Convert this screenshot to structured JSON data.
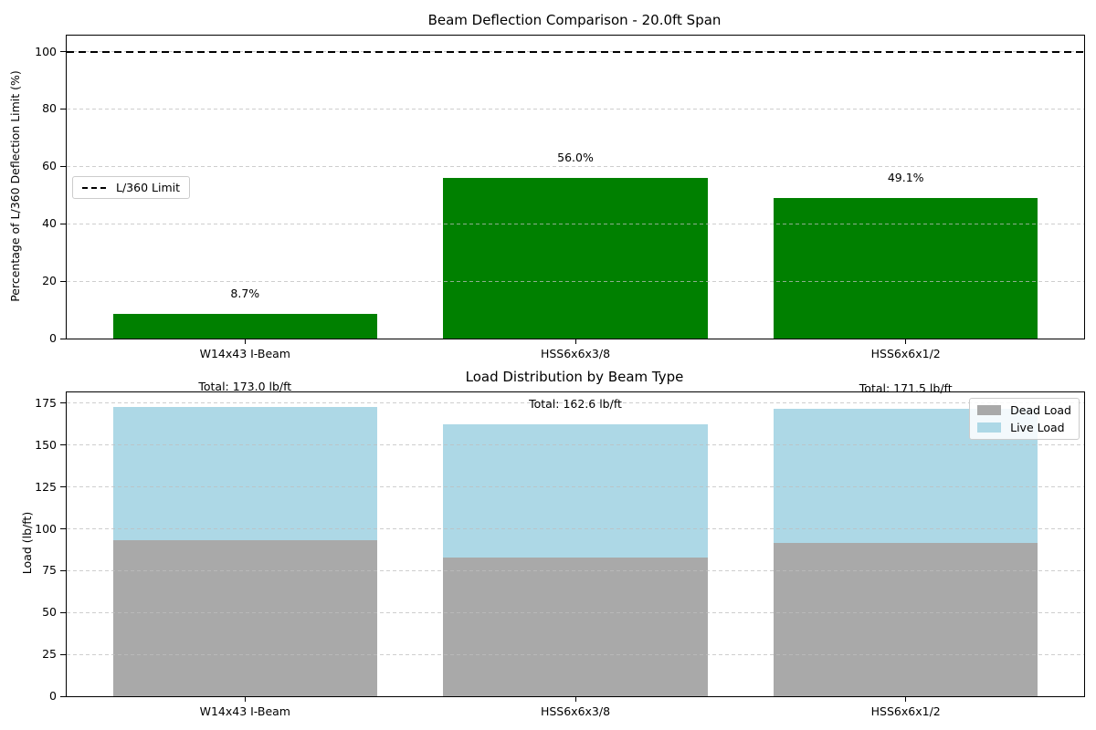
{
  "chart_data": [
    {
      "type": "bar",
      "title": "Beam Deflection Comparison - 20.0ft Span",
      "ylabel": "Percentage of L/360 Deflection Limit (%)",
      "categories": [
        "W14x43 I-Beam",
        "HSS6x6x3/8",
        "HSS6x6x1/2"
      ],
      "values": [
        8.7,
        56.0,
        49.1
      ],
      "bar_labels": [
        "8.7%",
        "56.0%",
        "49.1%"
      ],
      "bar_color": "#008000",
      "yticks": [
        0,
        20,
        40,
        60,
        80,
        100
      ],
      "ylim": [
        0,
        105.6
      ],
      "grid": true,
      "limit_line": {
        "value": 100,
        "label": "L/360 Limit",
        "color": "#000000"
      },
      "legend_position": "center left"
    },
    {
      "type": "stacked_bar",
      "title": "Load Distribution by Beam Type",
      "ylabel": "Load (lb/ft)",
      "categories": [
        "W14x43 I-Beam",
        "HSS6x6x3/8",
        "HSS6x6x1/2"
      ],
      "series": [
        {
          "name": "Dead Load",
          "color": "#a9a9a9",
          "values": [
            93.0,
            82.6,
            91.5
          ]
        },
        {
          "name": "Live Load",
          "color": "#add8e6",
          "values": [
            80.0,
            80.0,
            80.0
          ]
        }
      ],
      "totals": [
        173.0,
        162.6,
        171.5
      ],
      "total_labels": [
        "Total: 173.0 lb/ft",
        "Total: 162.6 lb/ft",
        "Total: 171.5 lb/ft"
      ],
      "yticks": [
        0,
        25,
        50,
        75,
        100,
        125,
        150,
        175
      ],
      "ylim": [
        0,
        181.5
      ],
      "grid": true,
      "legend_position": "upper right"
    }
  ]
}
